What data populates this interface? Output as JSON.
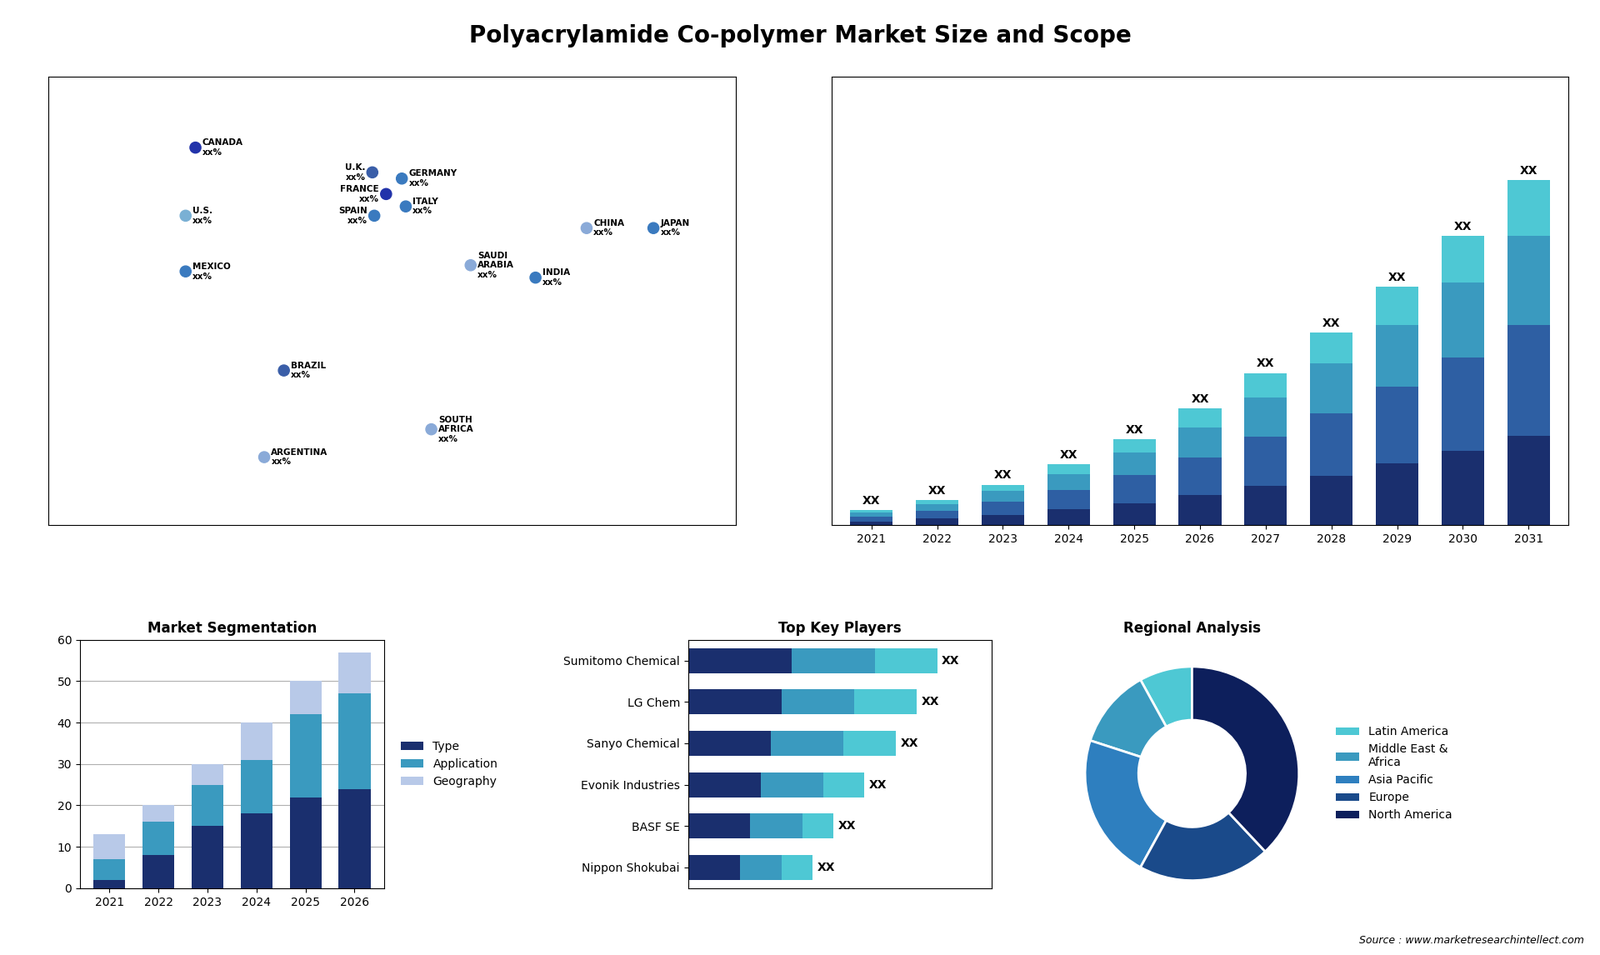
{
  "title": "Polyacrylamide Co-polymer Market Size and Scope",
  "annotation": "Source : www.marketresearchintellect.com",
  "chart_data": [
    {
      "type": "map",
      "x": [
        -95,
        -100,
        -100,
        -50,
        -60,
        -5,
        2,
        -4,
        10,
        12,
        45,
        25,
        104,
        78,
        138
      ],
      "y": [
        62,
        40,
        22,
        -10,
        -38,
        54,
        47,
        40,
        52,
        43,
        24,
        -29,
        36,
        20,
        36
      ],
      "labels": [
        "CANADA\nxx%",
        "U.S.\nxx%",
        "MEXICO\nxx%",
        "BRAZIL\nxx%",
        "ARGENTINA\nxx%",
        "U.K.\nxx%",
        "FRANCE\nxx%",
        "SPAIN\nxx%",
        "GERMANY\nxx%",
        "ITALY\nxx%",
        "SAUDI\nARABIA\nxx%",
        "SOUTH\nAFRICA\nxx%",
        "CHINA\nxx%",
        "INDIA\nxx%",
        "JAPAN\nxx%"
      ],
      "colors": [
        "#2233aa",
        "#7ab0d4",
        "#3a7abf",
        "#3a5ea8",
        "#8aaad8",
        "#3a5ea8",
        "#2233aa",
        "#3a7abf",
        "#3a7abf",
        "#3a7abf",
        "#8aaad8",
        "#8aaad8",
        "#8aaad8",
        "#3a7abf",
        "#3a7abf"
      ],
      "xlim": [
        -170,
        180
      ],
      "ylim": [
        -60,
        85
      ],
      "tick_labels": false
    },
    {
      "type": "bar",
      "stacked": true,
      "categories": [
        "2021",
        "2022",
        "2023",
        "2024",
        "2025",
        "2026",
        "2027",
        "2028",
        "2029",
        "2030",
        "2031"
      ],
      "series": [
        {
          "color": "#1a2f6e",
          "values": [
            1.2,
            2.0,
            3.2,
            4.8,
            6.8,
            9.2,
            12.0,
            15.2,
            18.8,
            22.8,
            27.2
          ]
        },
        {
          "color": "#2e5fa3",
          "values": [
            1.5,
            2.5,
            4.0,
            6.0,
            8.5,
            11.5,
            15.0,
            19.0,
            23.5,
            28.5,
            34.0
          ]
        },
        {
          "color": "#3a9abf",
          "values": [
            1.2,
            2.0,
            3.2,
            4.8,
            6.8,
            9.2,
            12.0,
            15.2,
            18.8,
            22.8,
            27.2
          ]
        },
        {
          "color": "#4ec8d4",
          "values": [
            0.8,
            1.2,
            2.0,
            3.0,
            4.2,
            5.8,
            7.5,
            9.5,
            11.8,
            14.2,
            17.0
          ],
          "value_labels": [
            "XX",
            "XX",
            "XX",
            "XX",
            "XX",
            "XX",
            "XX",
            "XX",
            "XX",
            "XX",
            "XX"
          ]
        }
      ],
      "ylim": [
        0,
        137.02
      ],
      "yticks": [],
      "tick_labels": "x",
      "data_labels": true
    },
    {
      "type": "bar",
      "title": "Market Segmentation",
      "stacked": true,
      "categories": [
        "2021",
        "2022",
        "2023",
        "2024",
        "2025",
        "2026"
      ],
      "series": [
        {
          "name": "Type",
          "color": "#1a2f6e",
          "values": [
            2,
            8,
            15,
            18,
            22,
            24
          ]
        },
        {
          "name": "Application",
          "color": "#3a9abf",
          "values": [
            5,
            8,
            10,
            13,
            20,
            23
          ]
        },
        {
          "name": "Geography",
          "color": "#b8c9e8",
          "values": [
            6,
            4,
            5,
            9,
            8,
            10
          ]
        }
      ],
      "ylim": [
        0,
        60
      ],
      "yticks": [
        0,
        10,
        20,
        30,
        40,
        50,
        60
      ],
      "grid": true,
      "legend": "center left"
    },
    {
      "type": "bar",
      "title": "Top Key Players",
      "orientation": "horizontal",
      "stacked": true,
      "categories": [
        "Sumitomo Chemical",
        "LG Chem",
        "Sanyo Chemical",
        "Evonik Industries",
        "BASF SE",
        "Nippon Shokubai"
      ],
      "series": [
        {
          "color": "#1a2f6e",
          "values": [
            5,
            4.5,
            4.0,
            3.5,
            3.0,
            2.5
          ]
        },
        {
          "color": "#3a9abf",
          "values": [
            4,
            3.5,
            3.5,
            3.0,
            2.5,
            2.0
          ]
        },
        {
          "color": "#4ec8d4",
          "values": [
            3,
            3.0,
            2.5,
            2.0,
            1.5,
            1.5
          ],
          "value_labels": [
            "XX",
            "XX",
            "XX",
            "XX",
            "XX",
            "XX"
          ]
        }
      ],
      "xlim": [
        0,
        14.64
      ],
      "xticks": [],
      "tick_labels": "y",
      "data_labels": true
    },
    {
      "type": "pie",
      "title": "Regional Analysis",
      "categories": [
        "Latin America",
        "Middle East &\nAfrica",
        "Asia Pacific",
        "Europe",
        "North America"
      ],
      "values": [
        8,
        12,
        22,
        20,
        38
      ],
      "colors": [
        "#4ec8d4",
        "#3a9abf",
        "#2e7fbf",
        "#1a4a8a",
        "#0d1f5c"
      ],
      "legend": "center left"
    }
  ]
}
